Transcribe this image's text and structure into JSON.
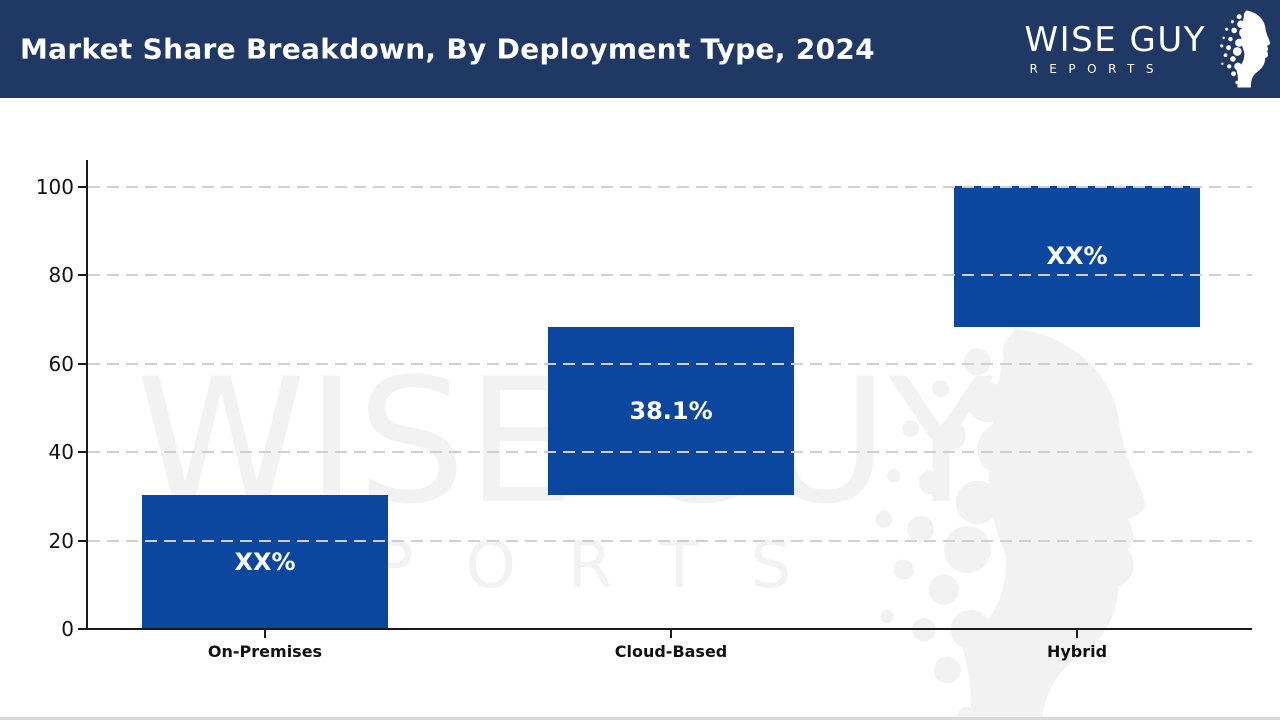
{
  "header": {
    "title": "Market Share Breakdown, By Deployment Type, 2024",
    "logo": {
      "line1": "WISE GUY",
      "line2": "REPORTS"
    }
  },
  "watermark": {
    "line1": "WISE GUY",
    "line2": "REPORTS"
  },
  "chart_data": {
    "type": "bar",
    "subtype": "waterfall",
    "title": "Market Share Breakdown, By Deployment Type, 2024",
    "categories": [
      "On-Premises",
      "Cloud-Based",
      "Hybrid"
    ],
    "segments": [
      {
        "category": "On-Premises",
        "start": 0,
        "end": 30,
        "label": "XX%"
      },
      {
        "category": "Cloud-Based",
        "start": 30,
        "end": 68.1,
        "label": "38.1%"
      },
      {
        "category": "Hybrid",
        "start": 68.1,
        "end": 100,
        "label": "XX%"
      }
    ],
    "xlabel": "",
    "ylabel": "",
    "yticks": [
      0,
      20,
      40,
      60,
      80,
      100
    ],
    "ylim": [
      0,
      106
    ],
    "grid": "horizontal-dashed",
    "legend": "none"
  },
  "colors": {
    "header_bg": "#203864",
    "bar": "#0c479f",
    "grid": "#d0d0d0",
    "axis": "#1a1a1a",
    "watermark": "#f2f2f2",
    "bar_label": "#ffffff"
  }
}
